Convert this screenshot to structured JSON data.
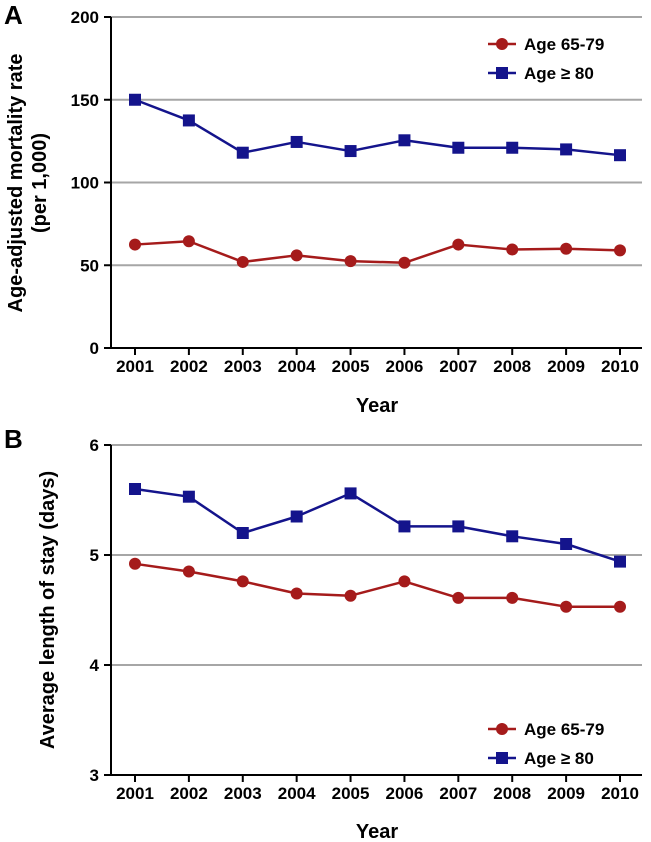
{
  "colors": {
    "red": "#a51b1b",
    "blue": "#14148c",
    "grid": "#a6a6a6"
  },
  "chart_data": [
    {
      "panel": "A",
      "type": "line",
      "title": "",
      "xlabel": "Year",
      "ylabel_lines": [
        "Age-adjusted mortality rate",
        "(per 1,000)"
      ],
      "categories": [
        "2001",
        "2002",
        "2003",
        "2004",
        "2005",
        "2006",
        "2007",
        "2008",
        "2009",
        "2010"
      ],
      "ylim": [
        0,
        200
      ],
      "yticks": [
        0,
        50,
        100,
        150,
        200
      ],
      "grid": true,
      "legend_position": "top-right",
      "series": [
        {
          "name": "Age 65-79",
          "marker": "circle",
          "color": "#a51b1b",
          "values": [
            62.5,
            64.5,
            52,
            56,
            52.5,
            51.5,
            62.5,
            59.5,
            60,
            59
          ]
        },
        {
          "name": "Age ≥ 80",
          "marker": "square",
          "color": "#14148c",
          "values": [
            150,
            137.5,
            118,
            124.5,
            119,
            125.5,
            121,
            121,
            120,
            116.5
          ]
        }
      ]
    },
    {
      "panel": "B",
      "type": "line",
      "title": "",
      "xlabel": "Year",
      "ylabel_lines": [
        "Average length of stay (days)"
      ],
      "categories": [
        "2001",
        "2002",
        "2003",
        "2004",
        "2005",
        "2006",
        "2007",
        "2008",
        "2009",
        "2010"
      ],
      "ylim": [
        3,
        6
      ],
      "yticks": [
        3,
        4,
        5,
        6
      ],
      "grid": true,
      "legend_position": "bottom-right",
      "series": [
        {
          "name": "Age 65-79",
          "marker": "circle",
          "color": "#a51b1b",
          "values": [
            4.92,
            4.85,
            4.76,
            4.65,
            4.63,
            4.76,
            4.61,
            4.61,
            4.53,
            4.53
          ]
        },
        {
          "name": "Age ≥ 80",
          "marker": "square",
          "color": "#14148c",
          "values": [
            5.6,
            5.53,
            5.2,
            5.35,
            5.56,
            5.26,
            5.26,
            5.17,
            5.1,
            4.94
          ]
        }
      ]
    }
  ]
}
